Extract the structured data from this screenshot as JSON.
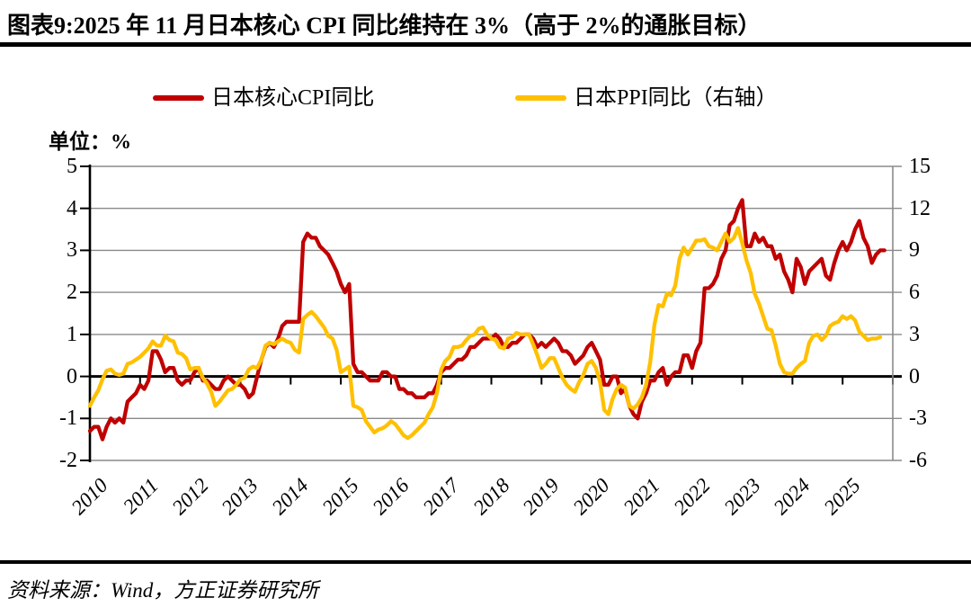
{
  "title": "图表9:2025 年 11 月日本核心 CPI 同比维持在 3%（高于 2%的通胀目标）",
  "unit_label": "单位：%",
  "source": "资料来源：Wind，方正证券研究所",
  "legend": [
    {
      "label": "日本核心CPI同比",
      "color": "#C00000"
    },
    {
      "label": "日本PPI同比（右轴）",
      "color": "#FFC000"
    }
  ],
  "colors": {
    "cpi_line": "#C00000",
    "ppi_line": "#FFC000",
    "gridline": "#8a8a8a",
    "axis": "#000000"
  },
  "chart_data": {
    "type": "line",
    "title": "图表9:2025 年 11 月日本核心 CPI 同比维持在 3%（高于 2%的通胀目标）",
    "xlabel": "",
    "ylabel_left": "单位：%",
    "grid": "horizontal",
    "legend_position": "top",
    "x_start_year": 2010,
    "x_years_span": 16,
    "x_tick_labels": [
      "2010",
      "2011",
      "2012",
      "2013",
      "2014",
      "2015",
      "2016",
      "2017",
      "2018",
      "2019",
      "2020",
      "2021",
      "2022",
      "2023",
      "2024",
      "2025"
    ],
    "left_axis": {
      "ticks": [
        5,
        4,
        3,
        2,
        1,
        0,
        -1,
        -2
      ],
      "range": [
        -2,
        5
      ]
    },
    "right_axis": {
      "ticks": [
        15,
        12,
        9,
        6,
        3,
        0,
        -3,
        -6
      ],
      "range": [
        -6,
        15
      ]
    },
    "series": [
      {
        "name": "日本核心CPI同比",
        "axis": "left",
        "color": "#C00000",
        "freq": "monthly",
        "start": "2010-01",
        "end": "2025-11",
        "values": [
          -1.3,
          -1.2,
          -1.2,
          -1.5,
          -1.2,
          -1.0,
          -1.1,
          -1.0,
          -1.1,
          -0.6,
          -0.5,
          -0.4,
          -0.2,
          -0.3,
          -0.1,
          0.6,
          0.6,
          0.4,
          0.1,
          0.2,
          0.2,
          -0.1,
          -0.2,
          -0.1,
          -0.1,
          0.1,
          0.2,
          -0.1,
          -0.1,
          -0.2,
          -0.3,
          -0.3,
          -0.1,
          0.0,
          -0.1,
          -0.2,
          -0.2,
          -0.3,
          -0.5,
          -0.4,
          0.0,
          0.4,
          0.7,
          0.8,
          0.7,
          0.9,
          1.2,
          1.3,
          1.3,
          1.3,
          1.3,
          3.2,
          3.4,
          3.3,
          3.3,
          3.1,
          3.0,
          2.9,
          2.7,
          2.5,
          2.2,
          2.0,
          2.2,
          0.3,
          0.1,
          0.1,
          0.0,
          -0.1,
          -0.1,
          -0.1,
          0.1,
          0.1,
          0.0,
          0.0,
          -0.3,
          -0.3,
          -0.4,
          -0.4,
          -0.5,
          -0.5,
          -0.5,
          -0.4,
          -0.4,
          -0.2,
          0.1,
          0.2,
          0.2,
          0.3,
          0.4,
          0.4,
          0.5,
          0.7,
          0.7,
          0.8,
          0.9,
          0.9,
          0.9,
          1.0,
          0.9,
          0.7,
          0.7,
          0.8,
          0.8,
          0.9,
          1.0,
          1.0,
          0.9,
          0.7,
          0.8,
          0.7,
          0.8,
          0.9,
          0.8,
          0.6,
          0.6,
          0.5,
          0.3,
          0.4,
          0.5,
          0.7,
          0.8,
          0.6,
          0.4,
          -0.2,
          -0.2,
          0.0,
          0.0,
          -0.4,
          -0.3,
          -0.7,
          -0.9,
          -1.0,
          -0.6,
          -0.4,
          -0.1,
          -0.1,
          0.1,
          0.2,
          -0.2,
          0.0,
          0.1,
          0.1,
          0.5,
          0.5,
          0.2,
          0.6,
          0.8,
          2.1,
          2.1,
          2.2,
          2.4,
          2.8,
          3.0,
          3.6,
          3.7,
          4.0,
          4.2,
          3.1,
          3.1,
          3.4,
          3.2,
          3.3,
          3.1,
          3.1,
          2.8,
          2.9,
          2.5,
          2.3,
          2.0,
          2.8,
          2.6,
          2.2,
          2.5,
          2.6,
          2.7,
          2.8,
          2.4,
          2.3,
          2.7,
          3.0,
          3.2,
          3.0,
          3.2,
          3.5,
          3.7,
          3.3,
          3.1,
          2.7,
          2.9,
          3.0,
          3.0
        ]
      },
      {
        "name": "日本PPI同比（右轴）",
        "axis": "right",
        "color": "#FFC000",
        "freq": "monthly",
        "start": "2010-01",
        "end": "2025-10",
        "values": [
          -2.1,
          -1.5,
          -1.0,
          -0.2,
          0.4,
          0.5,
          0.2,
          0.1,
          0.2,
          0.9,
          1.0,
          1.2,
          1.4,
          1.7,
          2.0,
          2.5,
          2.2,
          2.2,
          2.9,
          2.6,
          2.5,
          1.7,
          1.6,
          1.3,
          0.5,
          0.6,
          0.6,
          -0.1,
          -0.5,
          -1.1,
          -2.1,
          -1.8,
          -1.4,
          -1.0,
          -0.9,
          -0.6,
          -0.2,
          -0.1,
          0.5,
          0.7,
          0.6,
          1.2,
          2.2,
          2.4,
          2.3,
          2.5,
          2.7,
          2.5,
          2.4,
          1.9,
          1.7,
          4.1,
          4.4,
          4.6,
          4.3,
          3.9,
          3.5,
          2.9,
          2.7,
          1.9,
          0.3,
          0.5,
          0.7,
          -2.1,
          -2.2,
          -2.4,
          -3.2,
          -3.6,
          -4.0,
          -3.8,
          -3.7,
          -3.5,
          -3.2,
          -3.4,
          -3.8,
          -4.2,
          -4.4,
          -4.2,
          -3.9,
          -3.6,
          -3.3,
          -2.7,
          -2.2,
          -1.2,
          0.5,
          1.1,
          1.4,
          2.1,
          2.1,
          2.2,
          2.6,
          2.9,
          3.0,
          3.4,
          3.5,
          3.0,
          2.7,
          2.6,
          2.1,
          2.0,
          2.7,
          2.8,
          3.1,
          3.0,
          3.0,
          3.0,
          2.3,
          1.5,
          0.6,
          0.9,
          1.3,
          1.3,
          0.6,
          -0.1,
          -0.6,
          -0.9,
          -1.1,
          -0.4,
          0.1,
          0.9,
          1.1,
          0.6,
          -0.4,
          -2.4,
          -2.7,
          -1.6,
          -0.9,
          -0.6,
          -0.8,
          -2.1,
          -2.3,
          -2.0,
          -1.5,
          -0.6,
          1.0,
          3.7,
          5.1,
          5.0,
          5.9,
          5.8,
          6.5,
          8.4,
          9.2,
          8.7,
          9.2,
          9.7,
          9.7,
          9.8,
          9.3,
          9.2,
          9.0,
          9.6,
          10.2,
          9.6,
          9.9,
          10.6,
          9.5,
          8.3,
          7.4,
          5.9,
          5.2,
          4.3,
          3.4,
          3.3,
          2.2,
          0.9,
          0.3,
          0.2,
          0.2,
          0.6,
          0.9,
          1.1,
          2.4,
          2.9,
          3.0,
          2.6,
          2.9,
          3.6,
          3.8,
          3.9,
          4.3,
          4.1,
          4.3,
          4.0,
          3.2,
          2.9,
          2.6,
          2.7,
          2.7,
          2.8
        ]
      }
    ]
  }
}
